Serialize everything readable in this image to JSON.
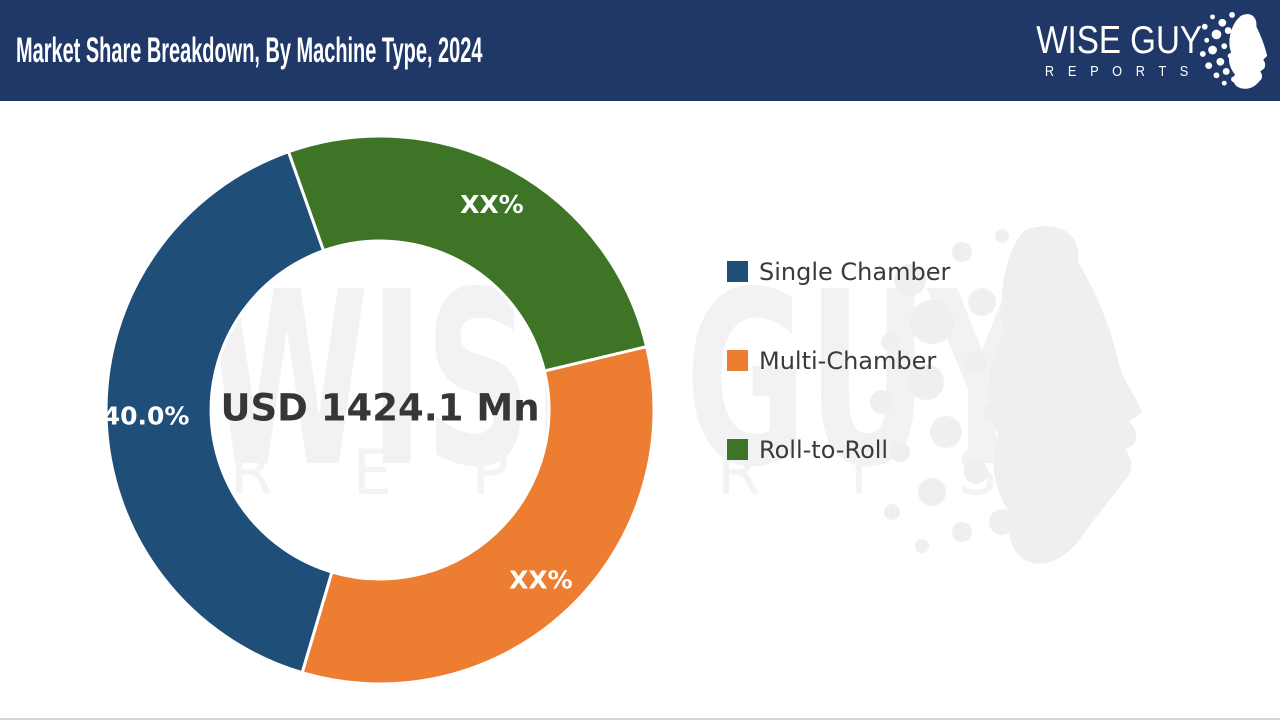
{
  "header": {
    "title": "Market Share Breakdown, By Machine Type, 2024",
    "bg_color": "#1F3868",
    "logo": {
      "line1": "WISE GUY",
      "line2": "R E P O R T S"
    }
  },
  "chart_data": {
    "type": "pie",
    "subtype": "donut",
    "title": "Market Share Breakdown, By Machine Type, 2024",
    "center_label": "USD 1424.1 Mn",
    "start_angle_deg": 109.5,
    "counterclockwise": true,
    "inner_radius_ratio": 0.615,
    "legend_position": "right",
    "series": [
      {
        "name": "Single Chamber",
        "value_pct": 40.0,
        "display_label": "40.0%",
        "color": "#1F4E79"
      },
      {
        "name": "Multi-Chamber",
        "value_pct": 33.3,
        "display_label": "XX%",
        "color": "#ED7D31"
      },
      {
        "name": "Roll-to-Roll",
        "value_pct": 26.7,
        "display_label": "XX%",
        "color": "#3E7426"
      }
    ]
  },
  "watermark": {
    "line1": "WISE GUY",
    "line2": "R E P O R T S"
  }
}
